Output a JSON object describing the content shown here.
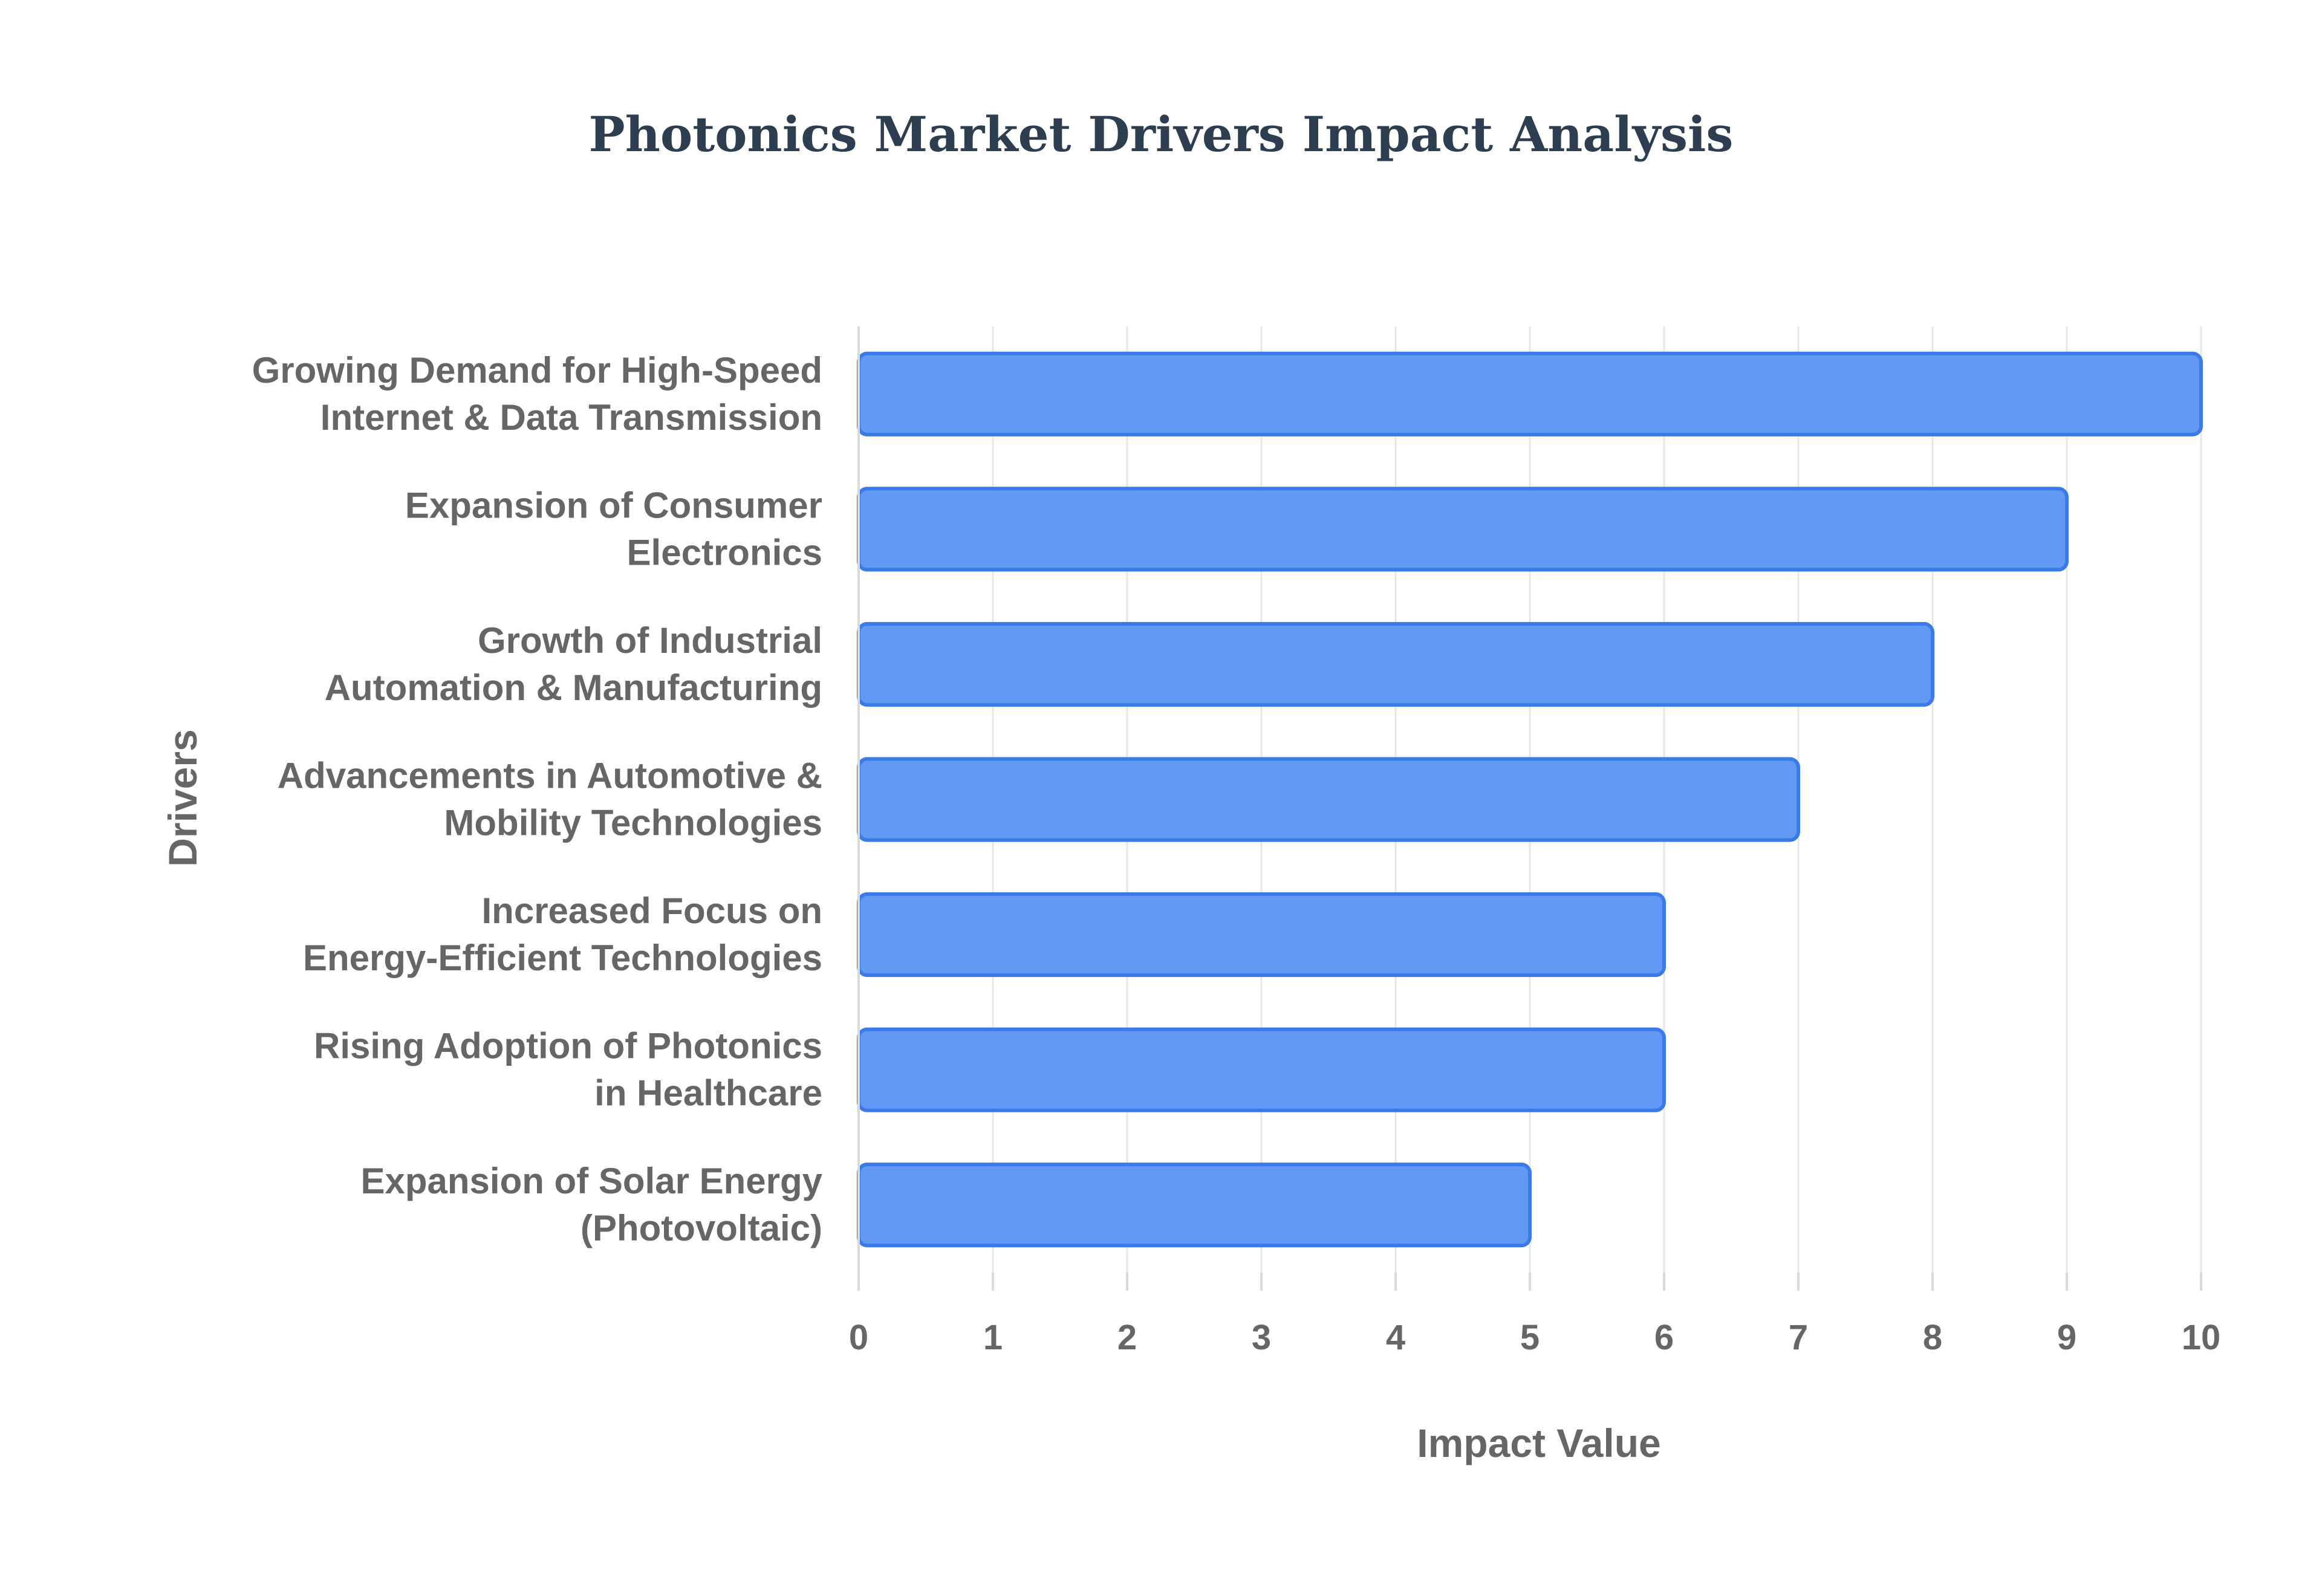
{
  "chart_data": {
    "type": "bar",
    "orientation": "horizontal",
    "title": "Photonics Market Drivers Impact Analysis",
    "xlabel": "Impact Value",
    "ylabel": "Drivers",
    "xlim": [
      0,
      10
    ],
    "xticks": [
      "0",
      "1",
      "2",
      "3",
      "4",
      "5",
      "6",
      "7",
      "8",
      "9",
      "10"
    ],
    "grid": true,
    "bar_color": "#6199f5",
    "bar_border_color": "#3b7be8",
    "categories": [
      [
        "Growing Demand for High-Speed",
        "Internet & Data Transmission"
      ],
      [
        "Expansion of Consumer",
        "Electronics"
      ],
      [
        "Growth of Industrial",
        "Automation & Manufacturing"
      ],
      [
        "Advancements in Automotive &",
        "Mobility Technologies"
      ],
      [
        "Increased Focus on",
        "Energy-Efficient Technologies"
      ],
      [
        "Rising Adoption of Photonics",
        "in Healthcare"
      ],
      [
        "Expansion of Solar Energy",
        "(Photovoltaic)"
      ]
    ],
    "values": [
      10,
      9,
      8,
      7,
      6,
      6,
      5
    ]
  }
}
